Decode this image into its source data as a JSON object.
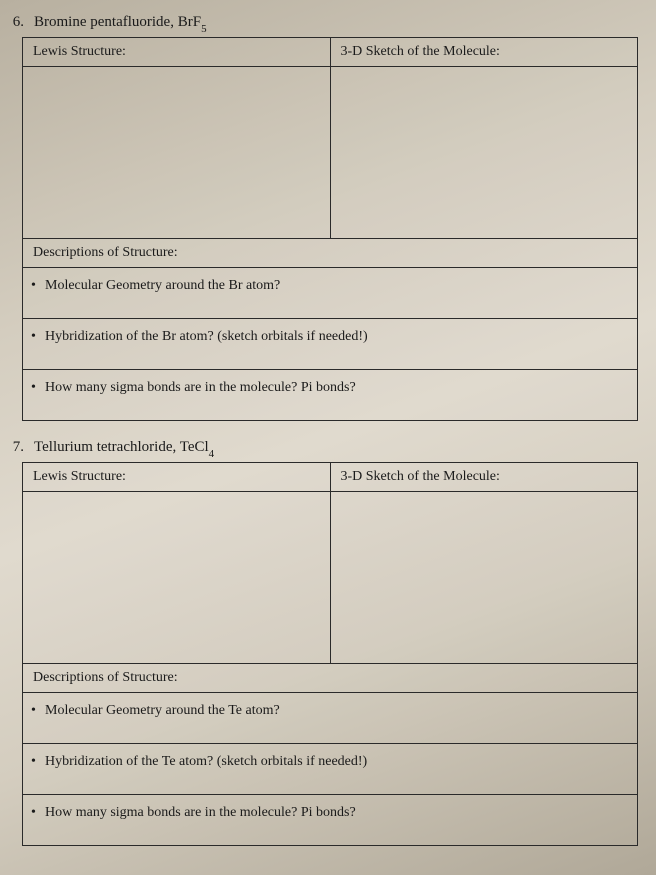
{
  "q6": {
    "number": "6.",
    "title_a": "Bromine pentafluoride, BrF",
    "title_sub": "5",
    "lewis_label": "Lewis Structure:",
    "sketch_label": "3-D Sketch of the Molecule:",
    "desc_header": "Descriptions of Structure:",
    "bullets": [
      "Molecular Geometry around the Br atom?",
      "Hybridization of the Br atom? (sketch orbitals if needed!)",
      "How many sigma bonds are in the molecule? Pi bonds?"
    ]
  },
  "q7": {
    "number": "7.",
    "title_a": "Tellurium tetrachloride, TeCl",
    "title_sub": "4",
    "lewis_label": "Lewis Structure:",
    "sketch_label": "3-D Sketch of the Molecule:",
    "desc_header": "Descriptions of Structure:",
    "bullets": [
      "Molecular Geometry around the Te atom?",
      "Hybridization of the Te atom? (sketch orbitals if needed!)",
      "How many sigma bonds are in the molecule? Pi bonds?"
    ]
  }
}
